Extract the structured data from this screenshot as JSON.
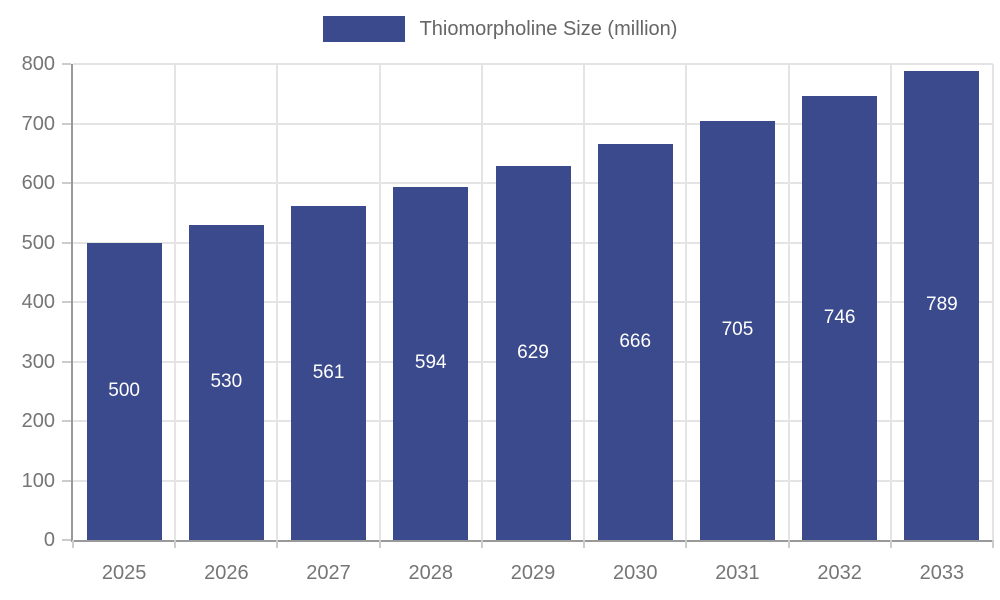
{
  "chart_data": {
    "type": "bar",
    "title": "",
    "legend_label": "Thiomorpholine Size (million)",
    "legend_position": "top-center",
    "categories": [
      "2025",
      "2026",
      "2027",
      "2028",
      "2029",
      "2030",
      "2031",
      "2032",
      "2033"
    ],
    "values": [
      500,
      530,
      561,
      594,
      629,
      666,
      705,
      746,
      789
    ],
    "xlabel": "",
    "ylabel": "",
    "ylim": [
      0,
      800
    ],
    "yticks": [
      0,
      100,
      200,
      300,
      400,
      500,
      600,
      700,
      800
    ],
    "grid": true,
    "value_labels": "inside-center",
    "colors": {
      "bar": "#3a4a8c",
      "value_label_text": "#ffffff",
      "axis_tick_text": "#757575",
      "legend_text": "#666666",
      "gridline": "#e4e4e4",
      "spine": "#999999"
    }
  }
}
